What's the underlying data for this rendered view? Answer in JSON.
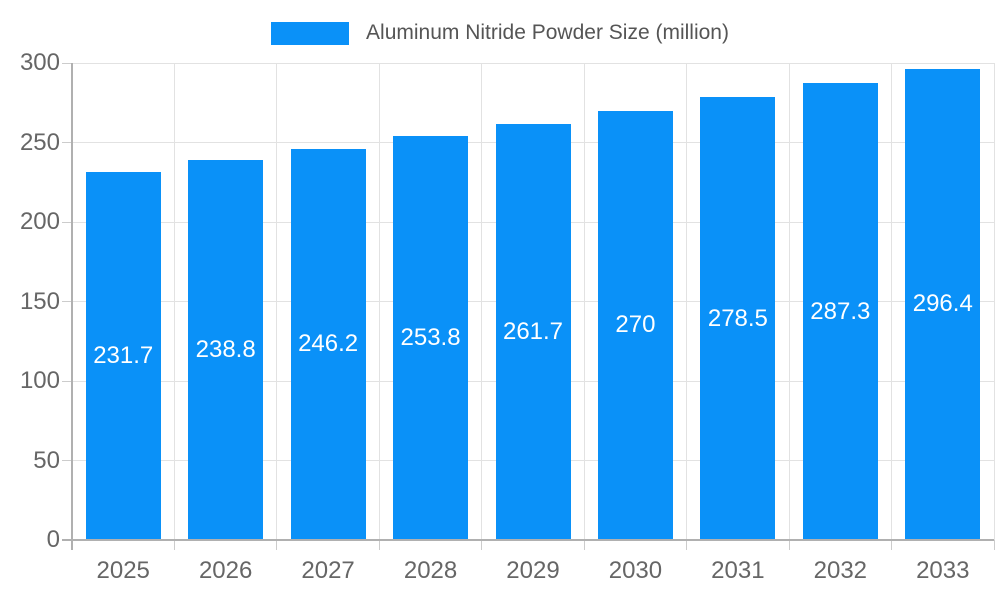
{
  "legend": {
    "label": "Aluminum Nitride Powder Size (million)"
  },
  "chart_data": {
    "type": "bar",
    "title": "Aluminum Nitride Powder Size (million)",
    "categories": [
      "2025",
      "2026",
      "2027",
      "2028",
      "2029",
      "2030",
      "2031",
      "2032",
      "2033"
    ],
    "values": [
      231.7,
      238.8,
      246.2,
      253.8,
      261.7,
      270,
      278.5,
      287.3,
      296.4
    ],
    "xlabel": "",
    "ylabel": "",
    "ylim": [
      0,
      300
    ],
    "yticks": [
      0,
      50,
      100,
      150,
      200,
      250,
      300
    ],
    "grid": true,
    "legend_position": "top",
    "bar_color": "#0a91f8",
    "value_label_color": "#ffffff",
    "grid_color": "#e2e2e2",
    "axis_color": "#b0b0b0",
    "tick_color": "#cccccc",
    "tick_label_color": "#666666",
    "legend_text_color": "#555555"
  }
}
